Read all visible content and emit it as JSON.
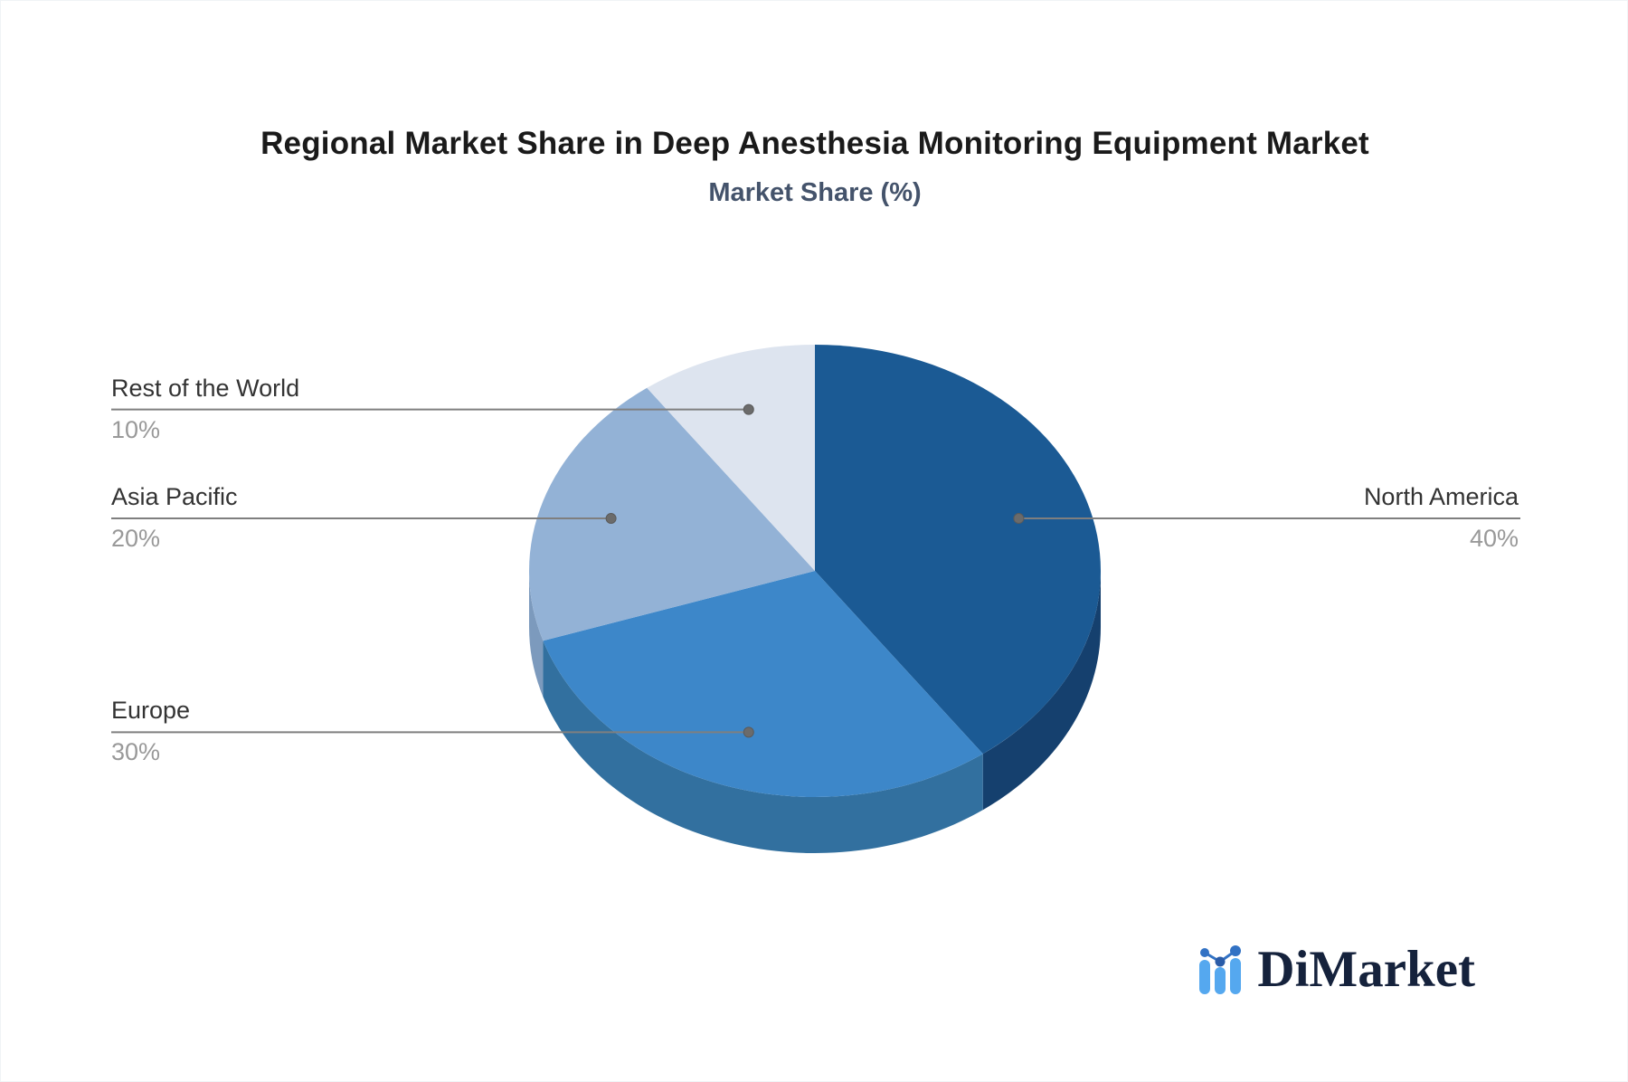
{
  "chart": {
    "title": "Regional Market Share in Deep Anesthesia Monitoring Equipment Market",
    "subtitle": "Market Share (%)"
  },
  "chart_data": {
    "type": "pie",
    "style": "pie3d",
    "title": "Regional Market Share in Deep Anesthesia Monitoring Equipment Market",
    "subtitle": "Market Share (%)",
    "unit": "%",
    "start_angle_deg": 0,
    "direction": "clockwise",
    "legend": "none",
    "slices": [
      {
        "name": "North America",
        "value": 40,
        "label": "40%",
        "color": "#1b5a94",
        "side_color": "#15406e",
        "label_side": "right"
      },
      {
        "name": "Europe",
        "value": 30,
        "label": "30%",
        "color": "#3d87c9",
        "side_color": "#32709f",
        "label_side": "left"
      },
      {
        "name": "Asia Pacific",
        "value": 20,
        "label": "20%",
        "color": "#93b2d6",
        "side_color": "#7c9abd",
        "label_side": "left"
      },
      {
        "name": "Rest of the World",
        "value": 10,
        "label": "10%",
        "color": "#dde4ef",
        "side_color": "#bac6d8",
        "label_side": "left"
      }
    ],
    "leader_line_color": "#7f7f7f",
    "leader_dot_color": "#6b6b6b",
    "label_name_color": "#333333",
    "label_value_color": "#999999",
    "title_color": "#1a1a1a",
    "subtitle_color": "#44536b"
  },
  "branding": {
    "logo_text": "DiMarket",
    "logo_icon": "bar-chart-trend-icon",
    "logo_text_color": "#15223c",
    "logo_bar_color": "#55a8ef",
    "logo_dot_color": "#3272c4"
  }
}
